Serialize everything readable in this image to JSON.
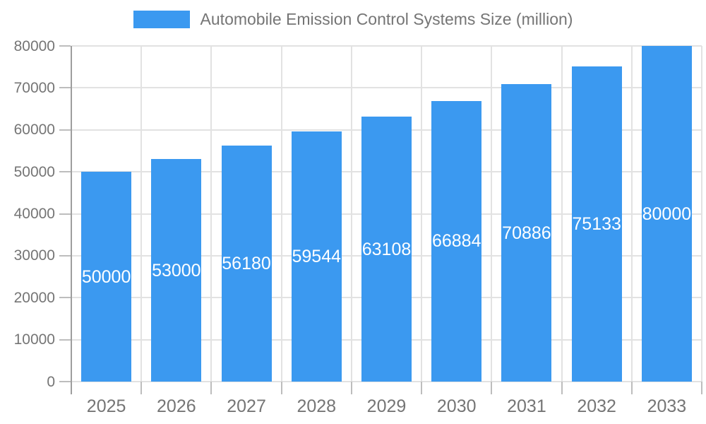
{
  "legend": {
    "series_label": "Automobile Emission Control Systems Size (million)"
  },
  "chart_data": {
    "type": "bar",
    "title": "Automobile Emission Control Systems Size (million)",
    "categories": [
      "2025",
      "2026",
      "2027",
      "2028",
      "2029",
      "2030",
      "2031",
      "2032",
      "2033"
    ],
    "values": [
      50000,
      53000,
      56180,
      59544,
      63108,
      66884,
      70886,
      75133,
      80000
    ],
    "bar_labels": [
      "50000",
      "53000",
      "56180",
      "59544",
      "63108",
      "66884",
      "70886",
      "75133",
      "80000"
    ],
    "xlabel": "",
    "ylabel": "",
    "ylim": [
      0,
      80000
    ],
    "ytick_step": 10000,
    "ytick_labels": [
      "0",
      "10000",
      "20000",
      "30000",
      "40000",
      "50000",
      "60000",
      "70000",
      "80000"
    ],
    "grid": true,
    "legend_position": "top",
    "colors": {
      "bar": "#3b99f0",
      "bar_label": "#ffffff",
      "axis_line": "#9e9e9e",
      "tick_line": "#bdbdbd",
      "gridline": "#e2e2e2",
      "text": "#757575",
      "background": "#ffffff"
    }
  }
}
